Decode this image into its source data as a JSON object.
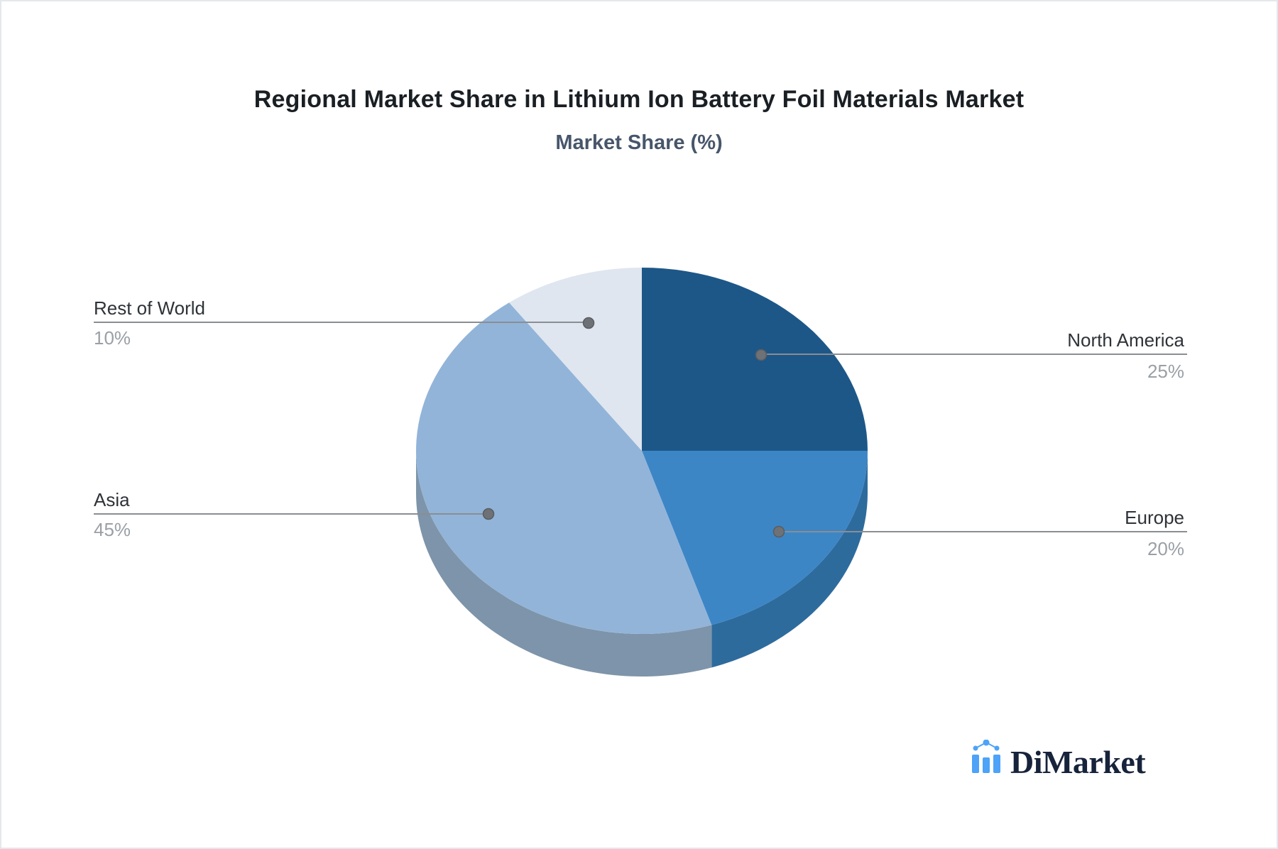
{
  "chart_data": {
    "type": "pie",
    "title": "Regional Market Share in Lithium Ion Battery Foil Materials Market",
    "subtitle": "Market Share (%)",
    "unit": "%",
    "effect": "3d",
    "start_angle_deg": 0,
    "direction": "clockwise",
    "legend_position": "callout-labels",
    "slices": [
      {
        "label": "North America",
        "value": 25,
        "pct_label": "25%",
        "color": "#1D5788",
        "side_color": "#174569",
        "callout_side": "right"
      },
      {
        "label": "Europe",
        "value": 20,
        "pct_label": "20%",
        "color": "#3D86C6",
        "side_color": "#2E6B9D",
        "callout_side": "right"
      },
      {
        "label": "Asia",
        "value": 45,
        "pct_label": "45%",
        "color": "#92B4D9",
        "side_color": "#7D94AA",
        "callout_side": "left"
      },
      {
        "label": "Rest of World",
        "value": 10,
        "pct_label": "10%",
        "color": "#DFE6EF",
        "side_color": "#B8C3D1",
        "callout_side": "left"
      }
    ],
    "label_text_color": "#2E3338",
    "pct_text_color": "#9AA0A6",
    "leader_line_color": "#8A8E93",
    "marker_dot_color": "#6E7276"
  },
  "branding": {
    "logo_text": "DiMarket",
    "logo_text_color": "#16233B",
    "logo_mark": "bar-chart-icon",
    "logo_mark_color": "#4DA3F7"
  },
  "page": {
    "background": "#FFFFFF",
    "border_color": "#E4E7EB"
  }
}
